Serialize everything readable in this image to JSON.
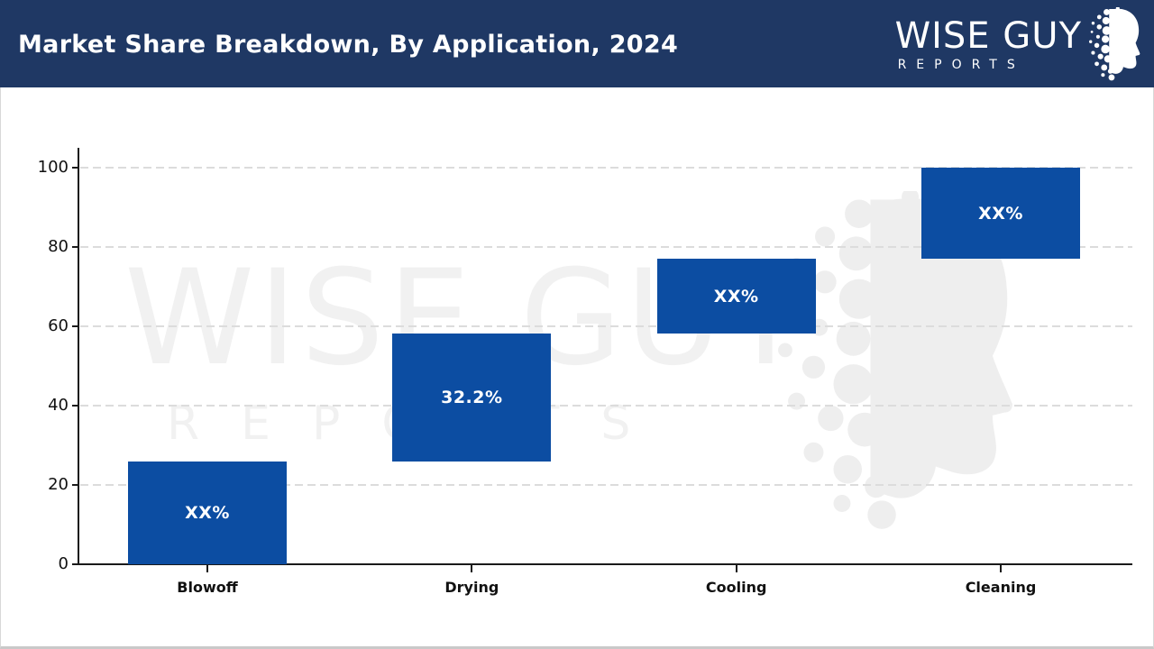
{
  "header": {
    "title": "Market Share Breakdown, By Application, 2024",
    "logo": {
      "line1": "WISE GUY",
      "line2": "REPORTS"
    }
  },
  "watermark": {
    "line1": "WISE GUY",
    "line2": "REPORTS"
  },
  "colors": {
    "header_bg": "#1f3864",
    "bar": "#0c4da2",
    "grid": "#dcdcdc",
    "axis": "#1a1a1a",
    "watermark": "#f1f1f1",
    "bar_label": "#ffffff"
  },
  "chart_data": {
    "type": "bar",
    "subtype": "waterfall",
    "title": "Market Share Breakdown, By Application, 2024",
    "categories": [
      "Blowoff",
      "Drying",
      "Cooling",
      "Cleaning"
    ],
    "segments": [
      {
        "category": "Blowoff",
        "start": 0,
        "end": 26,
        "label": "XX%"
      },
      {
        "category": "Drying",
        "start": 26,
        "end": 58.2,
        "label": "32.2%"
      },
      {
        "category": "Cooling",
        "start": 58.2,
        "end": 77,
        "label": "XX%"
      },
      {
        "category": "Cleaning",
        "start": 77,
        "end": 100,
        "label": "XX%"
      }
    ],
    "xlabel": "",
    "ylabel": "",
    "ylim": [
      0,
      100
    ],
    "yticks": [
      0,
      20,
      40,
      60,
      80,
      100
    ],
    "grid": true,
    "grid_style": "dashed",
    "legend": false,
    "bar_color": "#0c4da2"
  }
}
